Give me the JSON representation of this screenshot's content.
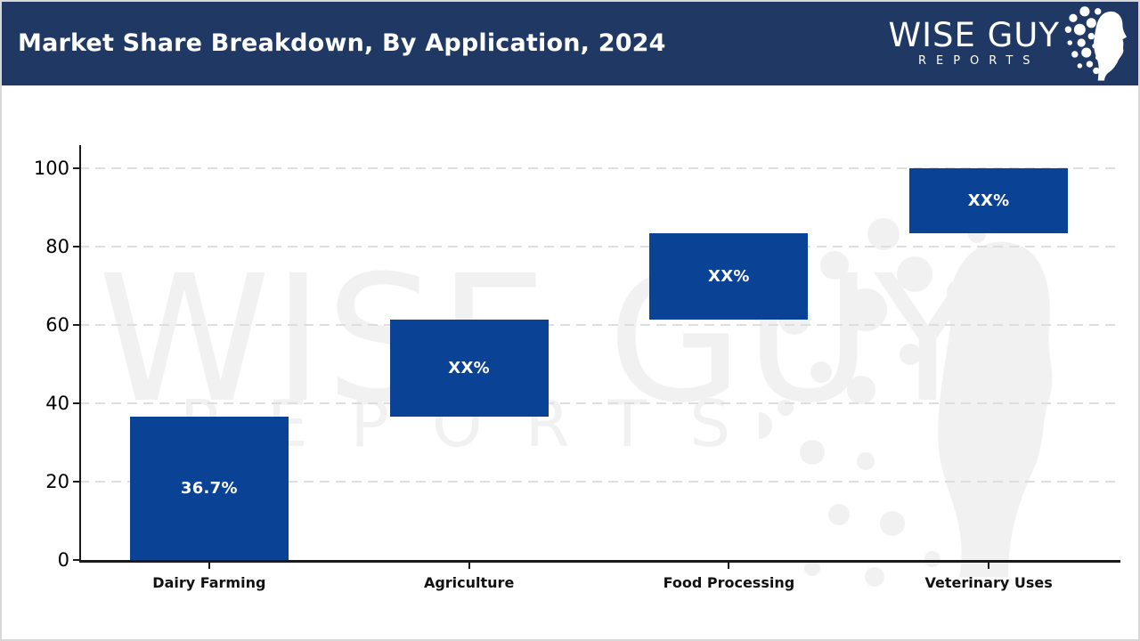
{
  "header": {
    "title": "Market Share Breakdown, By Application, 2024",
    "logo": {
      "line1": "WISE GUY",
      "line2": "REPORTS",
      "head_icon": "dot-matrix-face-profile"
    }
  },
  "watermark": {
    "line1": "WISE GUY",
    "line2": "REPORTS",
    "head_icon": "dot-matrix-face-profile"
  },
  "colors": {
    "header_bg": "#1F3864",
    "bar": "#0A4296",
    "bar_label": "#FFFFFF",
    "axis": "#1A1A1A",
    "gridline": "#DEDEDE",
    "watermark": "#F1F1F1",
    "category_label": "#111111"
  },
  "chart_data": {
    "type": "bar",
    "variant": "waterfall-floating-bars",
    "title": "Market Share Breakdown, By Application, 2024",
    "categories": [
      "Dairy Farming",
      "Agriculture",
      "Food Processing",
      "Veterinary Uses"
    ],
    "segments": [
      {
        "category": "Dairy Farming",
        "start": 0,
        "end": 36.7,
        "label": "36.7%"
      },
      {
        "category": "Agriculture",
        "start": 36.7,
        "end": 61.3,
        "label": "XX%"
      },
      {
        "category": "Food Processing",
        "start": 61.3,
        "end": 83.5,
        "label": "XX%"
      },
      {
        "category": "Veterinary Uses",
        "start": 83.5,
        "end": 100,
        "label": "XX%"
      }
    ],
    "xlabel": "",
    "ylabel": "",
    "ylim": [
      0,
      106
    ],
    "yticks": [
      0,
      20,
      40,
      60,
      80,
      100
    ],
    "grid": "horizontal-dashed",
    "legend": "none"
  }
}
